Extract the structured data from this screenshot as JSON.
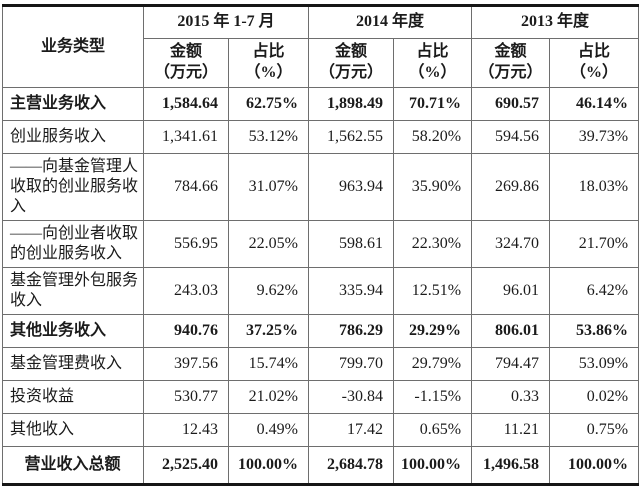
{
  "table": {
    "corner_label": "业务类型",
    "periods": [
      {
        "label": "2015 年 1-7 月"
      },
      {
        "label": "2014 年度"
      },
      {
        "label": "2013 年度"
      }
    ],
    "subheader": {
      "amount_line1": "金额",
      "amount_line2": "（万元）",
      "ratio_line1": "占比",
      "ratio_line2": "（%）"
    },
    "rows": [
      {
        "label": "主营业务收入",
        "bold": true,
        "total": false,
        "values": [
          "1,584.64",
          "62.75%",
          "1,898.49",
          "70.71%",
          "690.57",
          "46.14%"
        ]
      },
      {
        "label": "创业服务收入",
        "bold": false,
        "total": false,
        "values": [
          "1,341.61",
          "53.12%",
          "1,562.55",
          "58.20%",
          "594.56",
          "39.73%"
        ]
      },
      {
        "label": "——向基金管理人收取的创业服务收入",
        "bold": false,
        "total": false,
        "values": [
          "784.66",
          "31.07%",
          "963.94",
          "35.90%",
          "269.86",
          "18.03%"
        ]
      },
      {
        "label": "——向创业者收取的创业服务收入",
        "bold": false,
        "total": false,
        "values": [
          "556.95",
          "22.05%",
          "598.61",
          "22.30%",
          "324.70",
          "21.70%"
        ]
      },
      {
        "label": "基金管理外包服务收入",
        "bold": false,
        "total": false,
        "values": [
          "243.03",
          "9.62%",
          "335.94",
          "12.51%",
          "96.01",
          "6.42%"
        ]
      },
      {
        "label": "其他业务收入",
        "bold": true,
        "total": false,
        "values": [
          "940.76",
          "37.25%",
          "786.29",
          "29.29%",
          "806.01",
          "53.86%"
        ]
      },
      {
        "label": "基金管理费收入",
        "bold": false,
        "total": false,
        "values": [
          "397.56",
          "15.74%",
          "799.70",
          "29.79%",
          "794.47",
          "53.09%"
        ]
      },
      {
        "label": "投资收益",
        "bold": false,
        "total": false,
        "values": [
          "530.77",
          "21.02%",
          "-30.84",
          "-1.15%",
          "0.33",
          "0.02%"
        ]
      },
      {
        "label": "其他收入",
        "bold": false,
        "total": false,
        "values": [
          "12.43",
          "0.49%",
          "17.42",
          "0.65%",
          "11.21",
          "0.75%"
        ]
      },
      {
        "label": "营业收入总额",
        "bold": true,
        "total": true,
        "values": [
          "2,525.40",
          "100.00%",
          "2,684.78",
          "100.00%",
          "1,496.58",
          "100.00%"
        ]
      }
    ]
  }
}
